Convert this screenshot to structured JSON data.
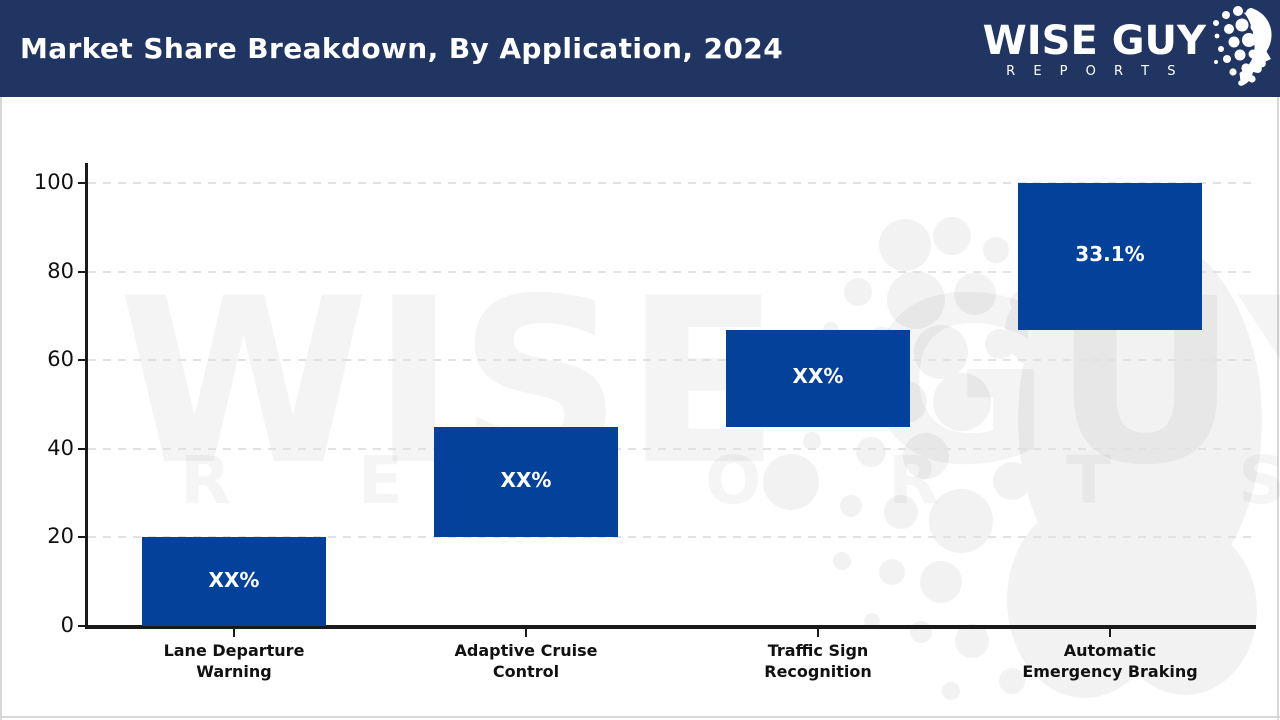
{
  "header": {
    "title": "Market Share Breakdown, By Application, 2024",
    "logo": {
      "name_line": "WISE GUY",
      "sub_line": "R E P O R T S"
    }
  },
  "watermark": {
    "name_line": "WISE GUY",
    "sub_line": "R E P O R T S"
  },
  "chart_data": {
    "type": "bar",
    "variant": "waterfall",
    "title": "Market Share Breakdown, By Application, 2024",
    "categories": [
      "Lane Departure Warning",
      "Adaptive Cruise Control",
      "Traffic Sign Recognition",
      "Automatic Emergency Braking"
    ],
    "category_lines": [
      [
        "Lane Departure",
        "Warning"
      ],
      [
        "Adaptive Cruise",
        "Control"
      ],
      [
        "Traffic Sign",
        "Recognition"
      ],
      [
        "Automatic",
        "Emergency Braking"
      ]
    ],
    "segments": [
      {
        "category": "Lane Departure Warning",
        "start": 0,
        "end": 20,
        "size_pct": 20,
        "label": "XX%"
      },
      {
        "category": "Adaptive Cruise Control",
        "start": 20,
        "end": 45,
        "size_pct": 25,
        "label": "XX%"
      },
      {
        "category": "Traffic Sign Recognition",
        "start": 45,
        "end": 66.9,
        "size_pct": 21.9,
        "label": "XX%"
      },
      {
        "category": "Automatic Emergency Braking",
        "start": 66.9,
        "end": 100,
        "size_pct": 33.1,
        "label": "33.1%"
      }
    ],
    "xlabel": "",
    "ylabel": "",
    "ylim": [
      0,
      100
    ],
    "yticks": [
      0,
      20,
      40,
      60,
      80,
      100
    ],
    "grid": "horizontal-dashed",
    "legend": "none",
    "colors": {
      "bar": "#04419b",
      "bar_label": "#ffffff",
      "axis": "#1a1a1a",
      "gridline": "#e2e2e2",
      "header_bg": "#203561",
      "header_text": "#ffffff",
      "watermark": "#f2f2f2"
    }
  }
}
